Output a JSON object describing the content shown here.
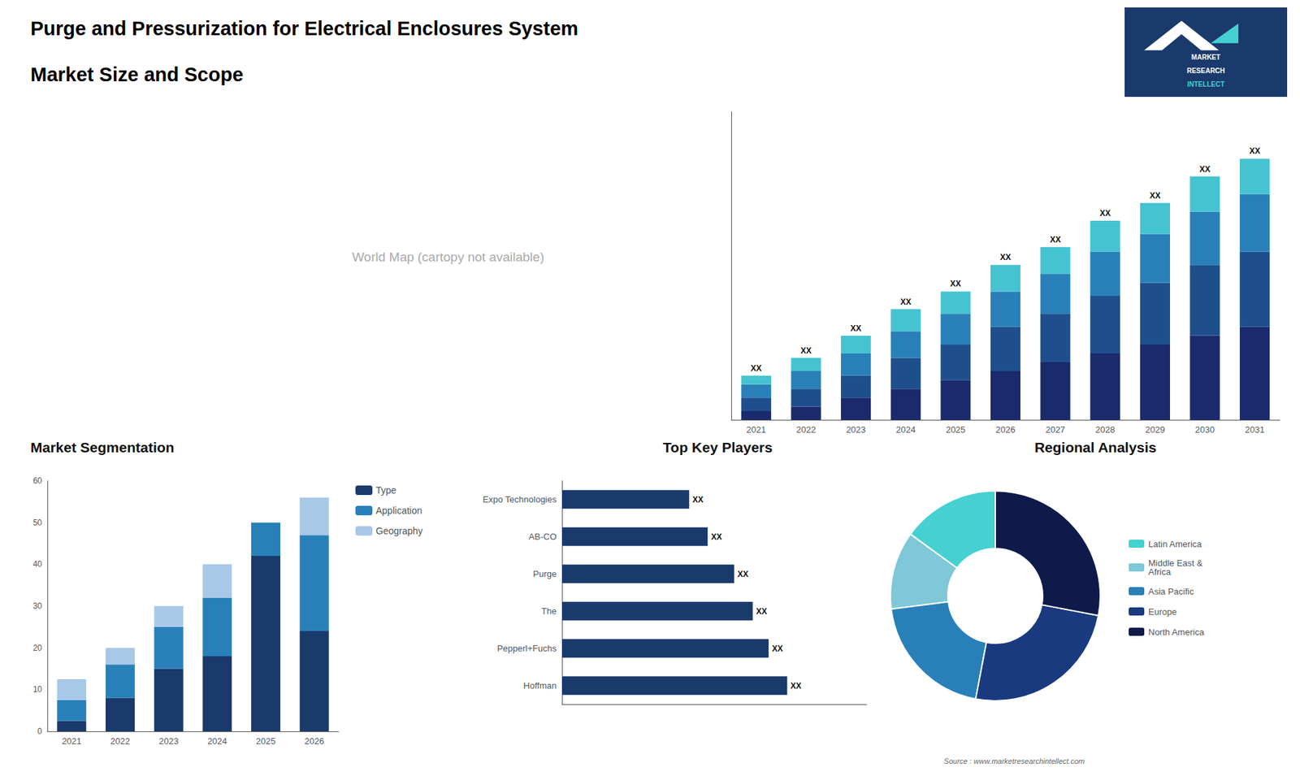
{
  "title": "Purge and Pressurization for Electrical Enclosures System",
  "subtitle": "Market Size and Scope",
  "annotations": [
    "World Map (cartopy not available)",
    "MARKET",
    "RESEARCH",
    "INTELLECT",
    "Source : www.marketresearchintellect.com"
  ],
  "chart_data": [
    {
      "type": "bar",
      "stacked": true,
      "categories": [
        "2021",
        "2022",
        "2023",
        "2024",
        "2025",
        "2026",
        "2027",
        "2028",
        "2029",
        "2030",
        "2031"
      ],
      "series": [
        {
          "color": "#1a2a6c",
          "values": [
            2,
            3,
            5,
            7,
            9,
            11,
            13,
            15,
            17,
            19,
            21
          ]
        },
        {
          "color": "#1e4f8c",
          "values": [
            3,
            4,
            5,
            7,
            8,
            10,
            11,
            13,
            14,
            16,
            17
          ]
        },
        {
          "color": "#2980b9",
          "values": [
            3,
            4,
            5,
            6,
            7,
            8,
            9,
            10,
            11,
            12,
            13
          ]
        },
        {
          "color": "#45c3d1",
          "values": [
            2,
            3,
            4,
            5,
            5,
            6,
            6,
            7,
            7,
            8,
            8
          ],
          "value_labels": [
            "XX",
            "XX",
            "XX",
            "XX",
            "XX",
            "XX",
            "XX",
            "XX",
            "XX",
            "XX",
            "XX"
          ]
        }
      ],
      "ylim": [
        0,
        69.62
      ],
      "tick_labels": "x",
      "grid": false
    },
    {
      "type": "bar",
      "title": "Market Segmentation",
      "stacked": true,
      "categories": [
        "2021",
        "2022",
        "2023",
        "2024",
        "2025",
        "2026"
      ],
      "series": [
        {
          "name": "Type",
          "color": "#1a3a6c",
          "values": [
            2.5,
            8,
            15,
            18,
            42,
            24
          ]
        },
        {
          "name": "Application",
          "color": "#2980b9",
          "values": [
            5,
            8,
            10,
            14,
            8,
            23
          ]
        },
        {
          "name": "Geography",
          "color": "#a8c8e8",
          "values": [
            5,
            4,
            5,
            8,
            0,
            9
          ]
        }
      ],
      "ylim": [
        0,
        60
      ],
      "yticks": [
        0,
        10,
        20,
        30,
        40,
        50,
        60
      ],
      "legend": "right",
      "grid": false
    },
    {
      "type": "bar",
      "title": "Top Key Players",
      "orientation": "horizontal",
      "categories": [
        "Hoffman",
        "Pepperl+Fuchs",
        "The",
        "Purge",
        "AB-CO",
        "Expo Technologies"
      ],
      "values": [
        85,
        78,
        72,
        65,
        55,
        48
      ],
      "value_labels": [
        "XX",
        "XX",
        "XX",
        "XX",
        "XX",
        "XX"
      ],
      "color": "#1a3a6c",
      "xlim": [
        0,
        115
      ],
      "tick_labels": "y",
      "grid": false
    },
    {
      "type": "pie",
      "title": "Regional Analysis",
      "categories": [
        "Latin America",
        "Middle East &\nAfrica",
        "Asia Pacific",
        "Europe",
        "North America"
      ],
      "values": [
        15,
        12,
        20,
        25,
        28
      ],
      "colors": [
        "#45d1d1",
        "#7ec8d8",
        "#2980b9",
        "#1a3a80",
        "#0d1a4a"
      ],
      "legend": "right"
    }
  ]
}
